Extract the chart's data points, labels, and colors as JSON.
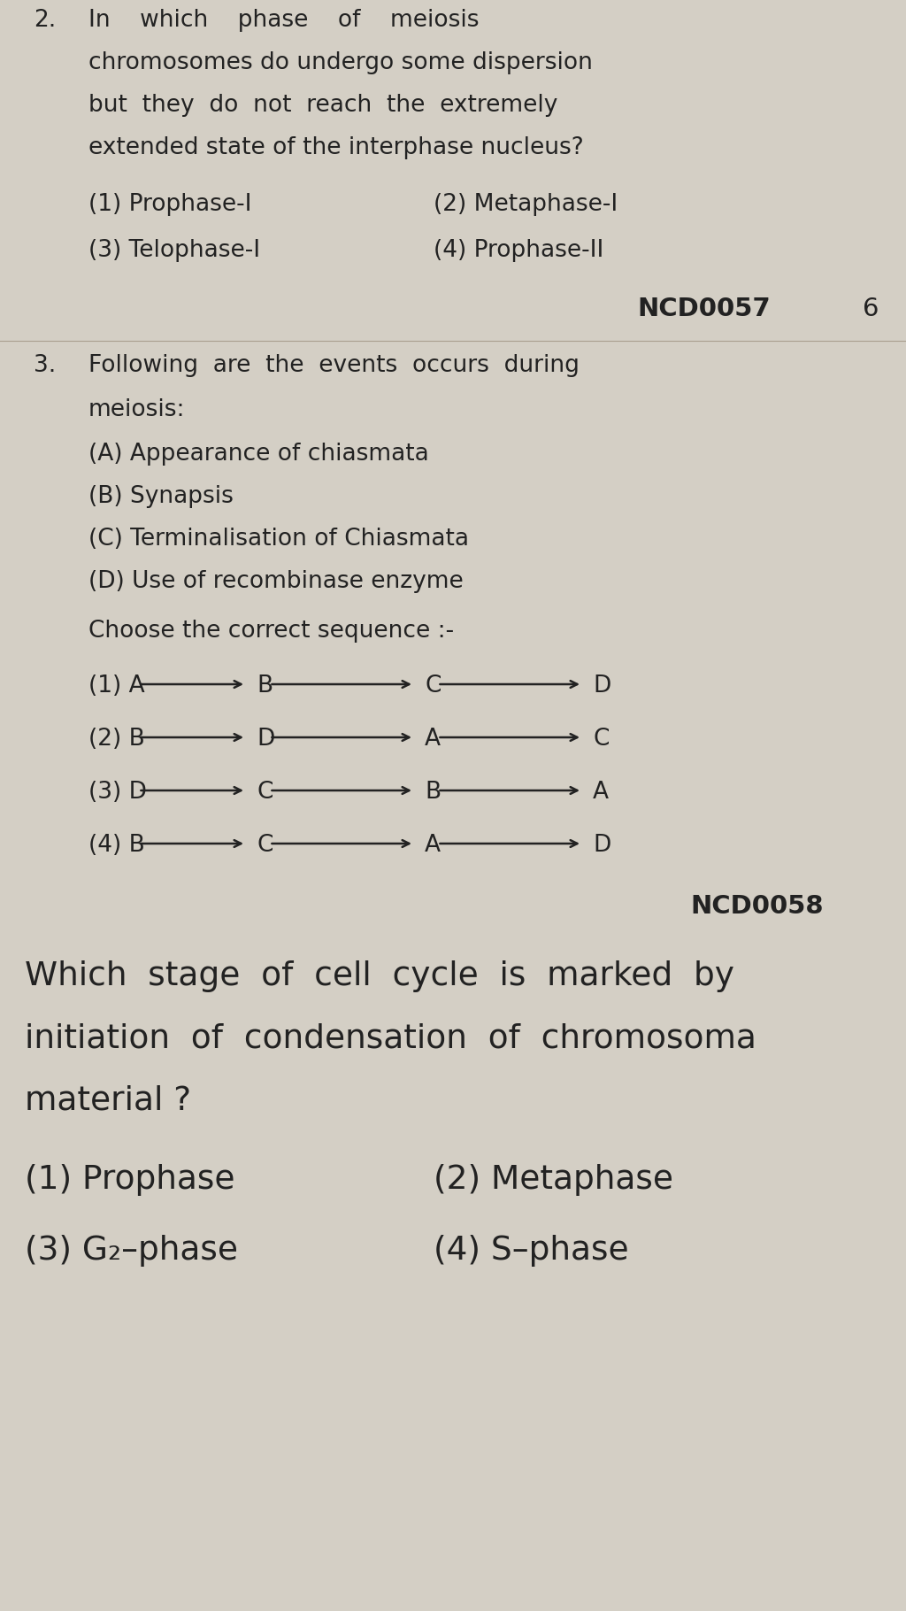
{
  "bg_color": "#ccc8be",
  "text_color": "#222222",
  "font_size_q2": 19,
  "font_size_q3": 19,
  "font_size_code": 21,
  "font_size_q4": 27,
  "q2_seq_parts_1": [
    "(1) A",
    "B",
    "C",
    "D"
  ],
  "q2_seq_parts_2": [
    "(2) B",
    "D",
    "A",
    "C"
  ],
  "q2_seq_parts_3": [
    "(3) D",
    "C",
    "B",
    "A"
  ],
  "q2_seq_parts_4": [
    "(4) B",
    "C",
    "A",
    "D"
  ]
}
